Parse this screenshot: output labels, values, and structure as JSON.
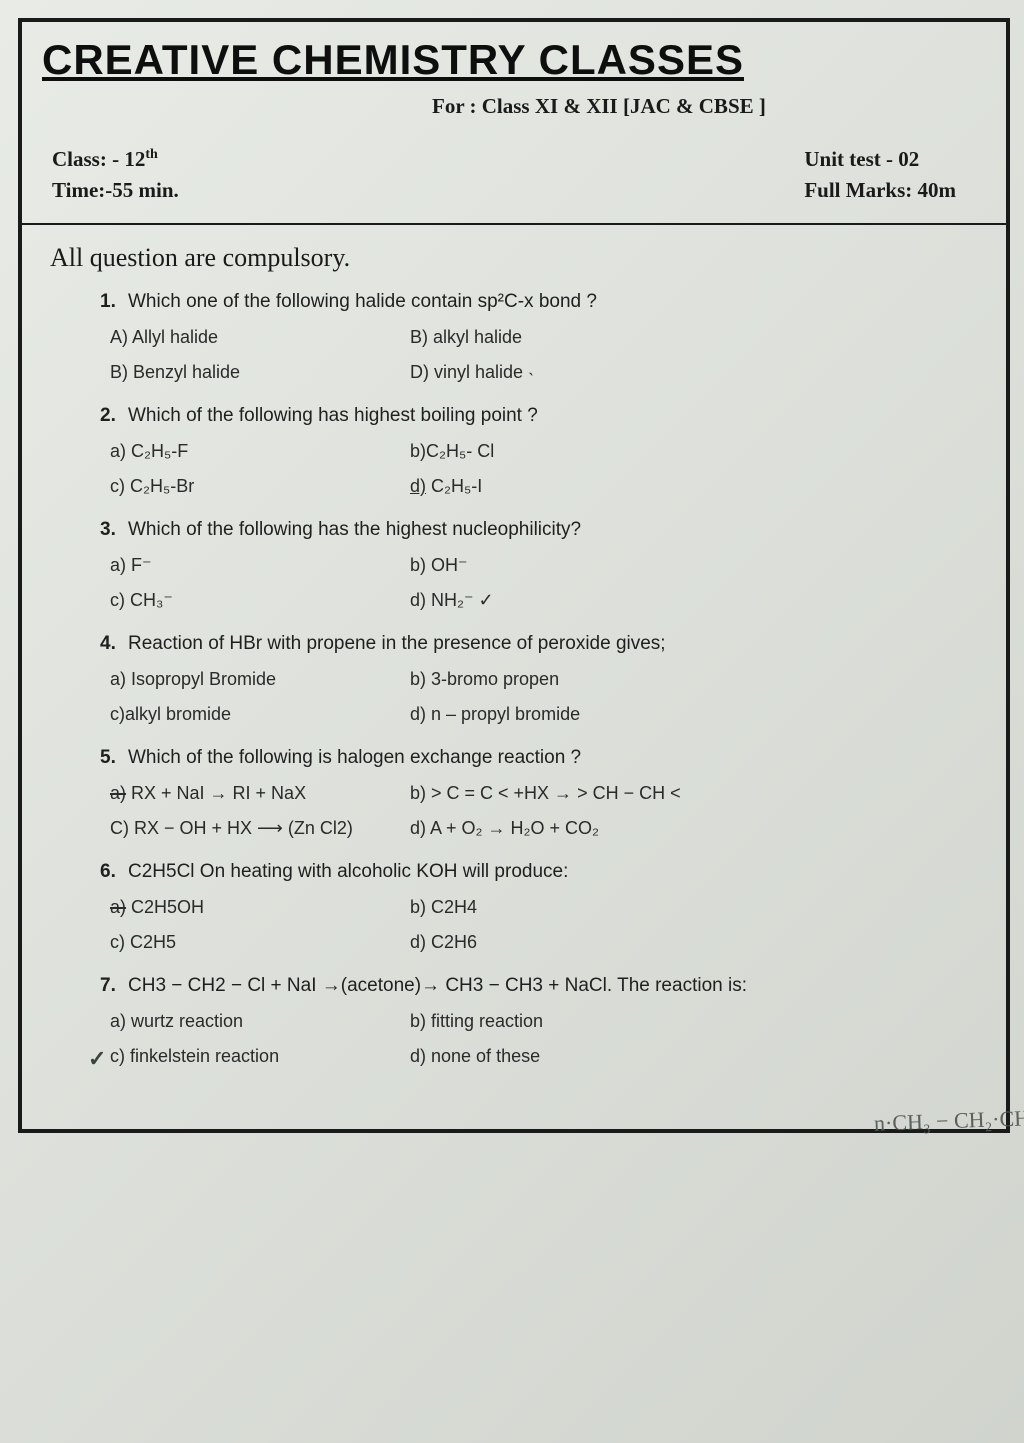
{
  "header": {
    "title": "CREATIVE CHEMISTRY CLASSES",
    "for_line": "For : Class XI & XII [JAC & CBSE ]",
    "class_label": "Class: - 12",
    "class_suffix": "th",
    "time_label": "Time:-55 min.",
    "unit_label": "Unit test - 02",
    "marks_label": "Full Marks: 40m"
  },
  "instruction": "All question are compulsory.",
  "questions": [
    {
      "num": "1.",
      "text": "Which one of the following halide contain sp²C-x bond ?",
      "opts": [
        "A) Allyl halide",
        "B) alkyl halide",
        "B)  Benzyl halide",
        "D) vinyl halide  ˴"
      ]
    },
    {
      "num": "2.",
      "text": "Which of the following has highest boiling point ?",
      "opts": [
        "a) C₂H₅-F",
        "b)C₂H₅- Cl",
        "c) C₂H₅-Br",
        "d) C₂H₅-I"
      ],
      "mark_index": 3,
      "mark_type": "underline"
    },
    {
      "num": "3.",
      "text": "Which of the following has the highest nucleophilicity?",
      "opts": [
        "a) F⁻",
        "b) OH⁻",
        "c) CH₃⁻",
        "d) NH₂⁻  ✓"
      ]
    },
    {
      "num": "4.",
      "text": "Reaction of HBr with propene in the presence of peroxide gives;",
      "opts": [
        "a) Isopropyl Bromide",
        "b) 3-bromo propen",
        "c)alkyl bromide",
        "d) n – propyl  bromide"
      ]
    },
    {
      "num": "5.",
      "text": "Which of the following is halogen  exchange reaction ?",
      "opts": [
        "a) RX + NaI → RI + NaX",
        "b) > C = C < +HX → > CH − CH <",
        "C) RX − OH + HX  ⟶  (Zn Cl2)",
        "d) A + O₂ → H₂O + CO₂"
      ],
      "mark_index": 0,
      "mark_type": "strike-a"
    },
    {
      "num": "6.",
      "text": "C2H5Cl  On heating with alcoholic KOH will produce:",
      "opts": [
        "a) C2H5OH",
        "b) C2H4",
        "c) C2H5",
        "d) C2H6"
      ],
      "mark_index": 0,
      "mark_type": "strike-a"
    },
    {
      "num": "7.",
      "text": "CH3 − CH2 − Cl + NaI  →(acetone)→  CH3 − CH3 + NaCl. The reaction is:",
      "opts": [
        "a) wurtz reaction",
        "b) fitting reaction",
        "c) finkelstein reaction",
        "d) none of these"
      ],
      "mark_index": 2,
      "mark_type": "check"
    }
  ],
  "handwriting": "n·CH₃ − CH₂·CH",
  "style": {
    "background": "#dde0da",
    "border_color": "#1a1a1a",
    "title_fontsize": 42,
    "body_fontsize": 19,
    "text_color": "#1a1a1a"
  }
}
